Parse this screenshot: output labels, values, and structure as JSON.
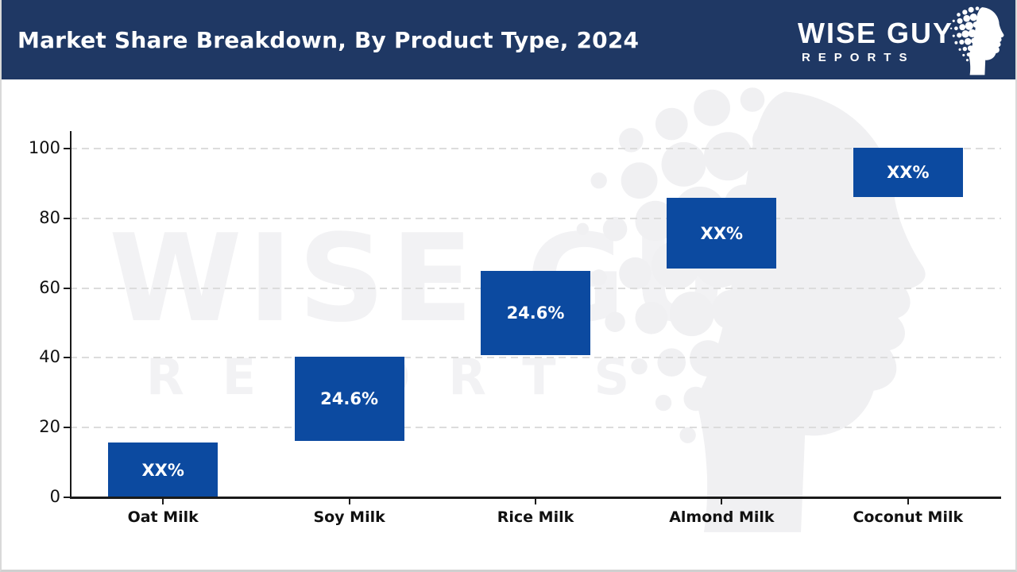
{
  "header": {
    "title": "Market Share Breakdown, By Product Type, 2024",
    "bg_color": "#1f3864",
    "logo": {
      "line1": "WISE GUY",
      "line2": "REPORTS"
    }
  },
  "watermark": {
    "line1": "WISE GUY",
    "line2": "REPORTS"
  },
  "chart_data": {
    "type": "bar",
    "subtype": "floating-waterfall",
    "title": "Market Share Breakdown, By Product Type, 2024",
    "categories": [
      "Oat Milk",
      "Soy Milk",
      "Rice Milk",
      "Almond Milk",
      "Coconut Milk"
    ],
    "series": [
      {
        "name": "Market Share (%)",
        "ranges": [
          [
            0,
            15.7
          ],
          [
            16.1,
            40.3
          ],
          [
            40.7,
            65.0
          ],
          [
            65.5,
            85.9
          ],
          [
            86.1,
            100.3
          ]
        ]
      }
    ],
    "bar_labels": [
      "XX%",
      "24.6%",
      "24.6%",
      "XX%",
      "XX%"
    ],
    "xlabel": "",
    "ylabel": "",
    "yticks": [
      0,
      20,
      40,
      60,
      80,
      100
    ],
    "ylim": [
      0,
      105
    ],
    "grid": true,
    "legend": false,
    "bar_color": "#0c4aa0",
    "bar_label_color": "#ffffff",
    "gridline_color": "#dcdcdc"
  }
}
